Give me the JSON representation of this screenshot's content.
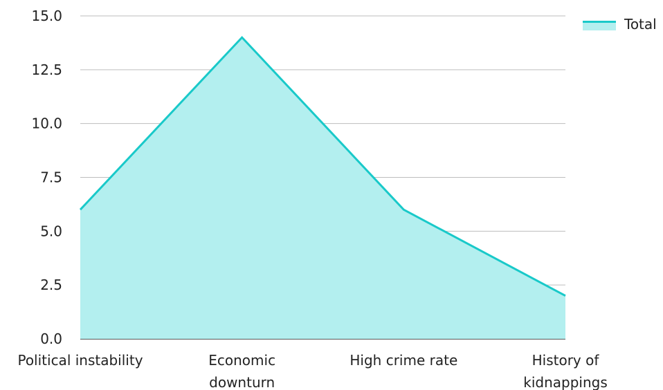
{
  "chart_data": {
    "type": "area",
    "categories": [
      [
        "Political instability"
      ],
      [
        "Economic",
        "downturn"
      ],
      [
        "High crime rate"
      ],
      [
        "History of",
        "kidnappings"
      ]
    ],
    "series": [
      {
        "name": "Total",
        "values": [
          6,
          14,
          6,
          2
        ]
      }
    ],
    "ylim": [
      0,
      15
    ],
    "yticks": [
      "0.0",
      "2.5",
      "5.0",
      "7.5",
      "10.0",
      "12.5",
      "15.0"
    ],
    "legend_position": "top-right",
    "grid": true,
    "colors": {
      "line": "#19c9c9",
      "fill": "#b3efef",
      "grid": "#bdbdbd",
      "axis": "#222222"
    }
  }
}
